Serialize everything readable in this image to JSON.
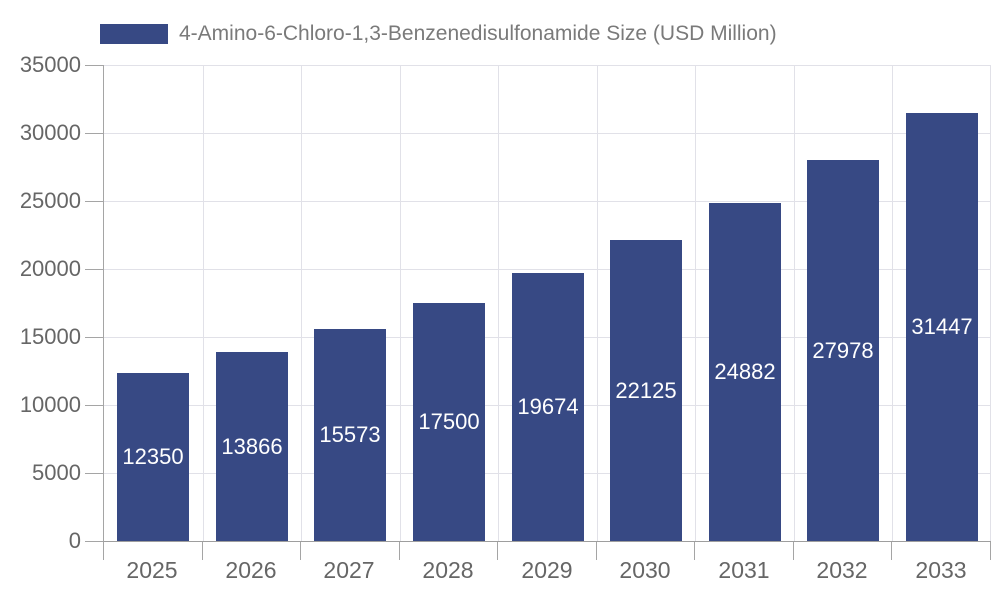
{
  "legend": {
    "label": "4-Amino-6-Chloro-1,3-Benzenedisulfonamide Size (USD Million)",
    "swatch_color": "#374984"
  },
  "chart_data": {
    "type": "bar",
    "title": "4-Amino-6-Chloro-1,3-Benzenedisulfonamide Size (USD Million)",
    "categories": [
      "2025",
      "2026",
      "2027",
      "2028",
      "2029",
      "2030",
      "2031",
      "2032",
      "2033"
    ],
    "values": [
      12350,
      13866,
      15573,
      17500,
      19674,
      22125,
      24882,
      27978,
      31447
    ],
    "xlabel": "",
    "ylabel": "",
    "ylim": [
      0,
      35000
    ],
    "yticks": [
      0,
      5000,
      10000,
      15000,
      20000,
      25000,
      30000,
      35000
    ],
    "grid": true,
    "legend_position": "top-left",
    "bar_color": "#374984",
    "value_label_color": "#ffffff",
    "gridline_color": "#e1e1e8",
    "axis_color": "#a5a5a5",
    "tick_label_color": "#666666",
    "legend_text_color": "#7a7a7a"
  }
}
